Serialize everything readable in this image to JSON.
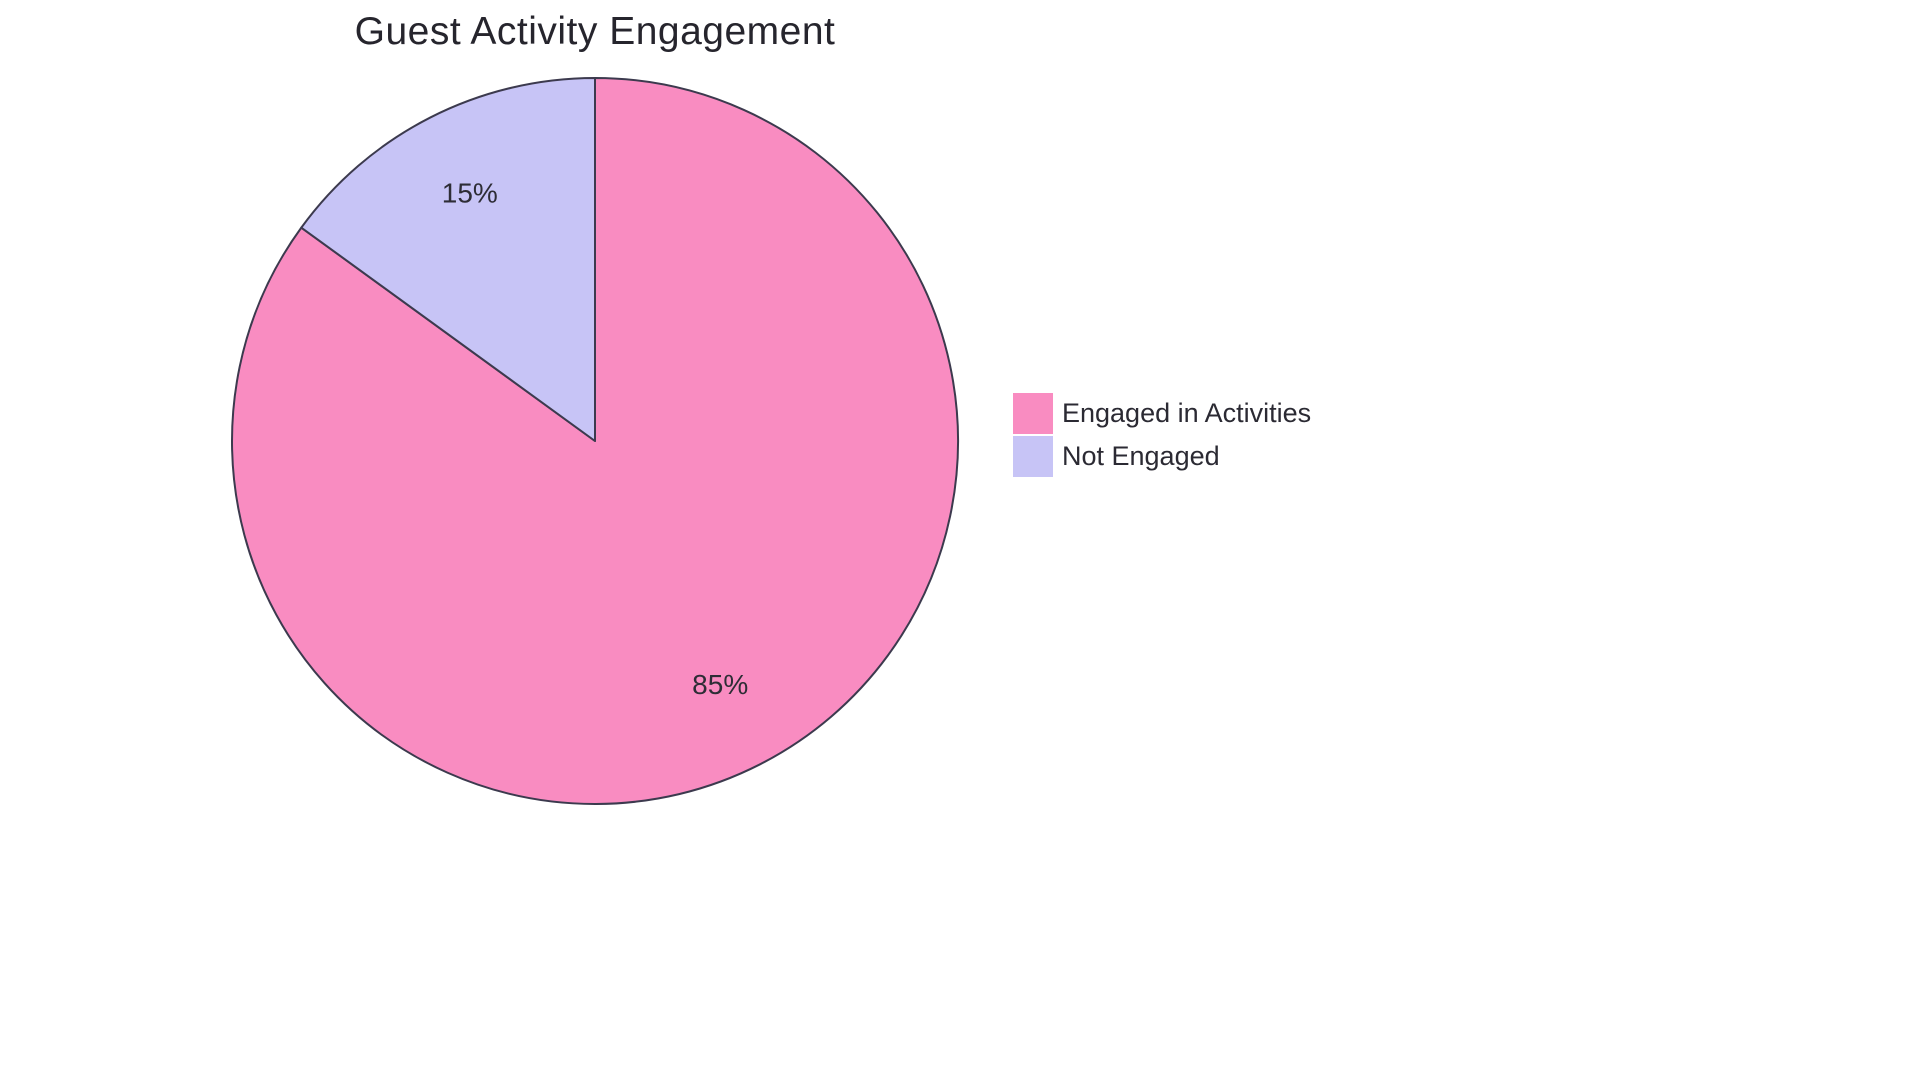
{
  "chart_data": {
    "type": "pie",
    "title": "Guest Activity Engagement",
    "title_color": "#26252d",
    "categories": [
      "Engaged in Activities",
      "Not Engaged"
    ],
    "values": [
      85,
      15
    ],
    "slices": [
      {
        "label": "Engaged in Activities",
        "value": 85,
        "display": "85%",
        "color": "#F98CC1"
      },
      {
        "label": "Not Engaged",
        "value": 15,
        "display": "15%",
        "color": "#C7C4F6"
      }
    ],
    "start_angle_deg": 0,
    "direction": "clockwise",
    "stroke_color": "#3C3A4E",
    "stroke_width": 2,
    "label_color": "#2E2D36",
    "label_font_size": 28,
    "legend_position": "right",
    "grid": false,
    "background": "#ffffff"
  }
}
